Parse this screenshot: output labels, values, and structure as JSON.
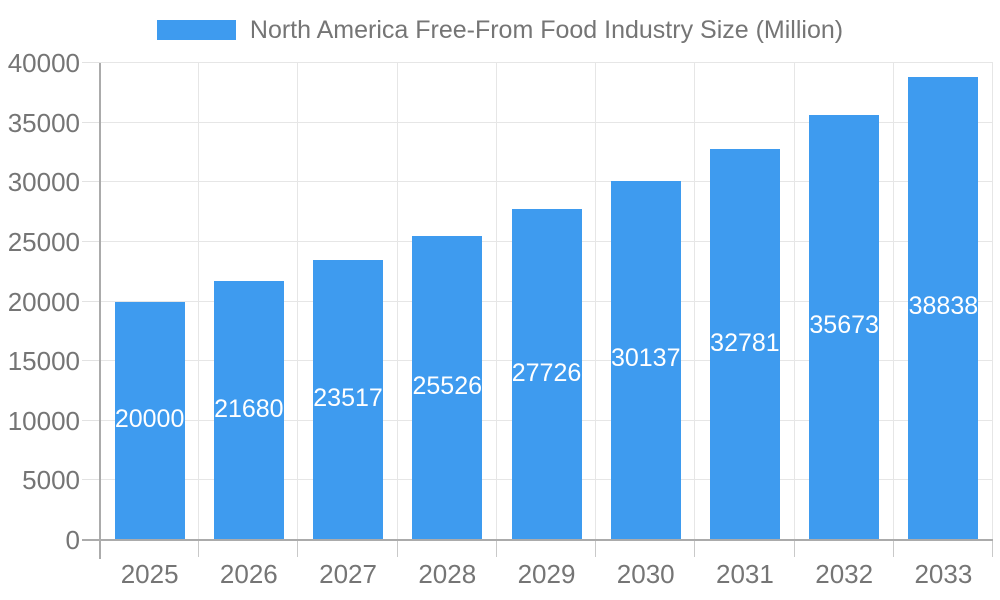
{
  "legend": {
    "label": "North America Free-From Food Industry Size (Million)"
  },
  "chart_data": {
    "type": "bar",
    "title": "North America Free-From Food Industry Size (Million)",
    "series_name": "North America Free-From Food Industry Size (Million)",
    "categories": [
      "2025",
      "2026",
      "2027",
      "2028",
      "2029",
      "2030",
      "2031",
      "2032",
      "2033"
    ],
    "values": [
      20000,
      21680,
      23517,
      25526,
      27726,
      30137,
      32781,
      35673,
      38838
    ],
    "xlabel": "",
    "ylabel": "",
    "ylim": [
      0,
      40000
    ],
    "yticks": [
      0,
      5000,
      10000,
      15000,
      20000,
      25000,
      30000,
      35000,
      40000
    ],
    "grid": true,
    "legend_position": "top",
    "value_labels": "inside-center",
    "colors": {
      "bar": "#3e9bef",
      "value_label": "#ffffff",
      "axis_text": "#757575",
      "gridline": "#e6e6e6",
      "axis_line": "#ababab"
    }
  }
}
